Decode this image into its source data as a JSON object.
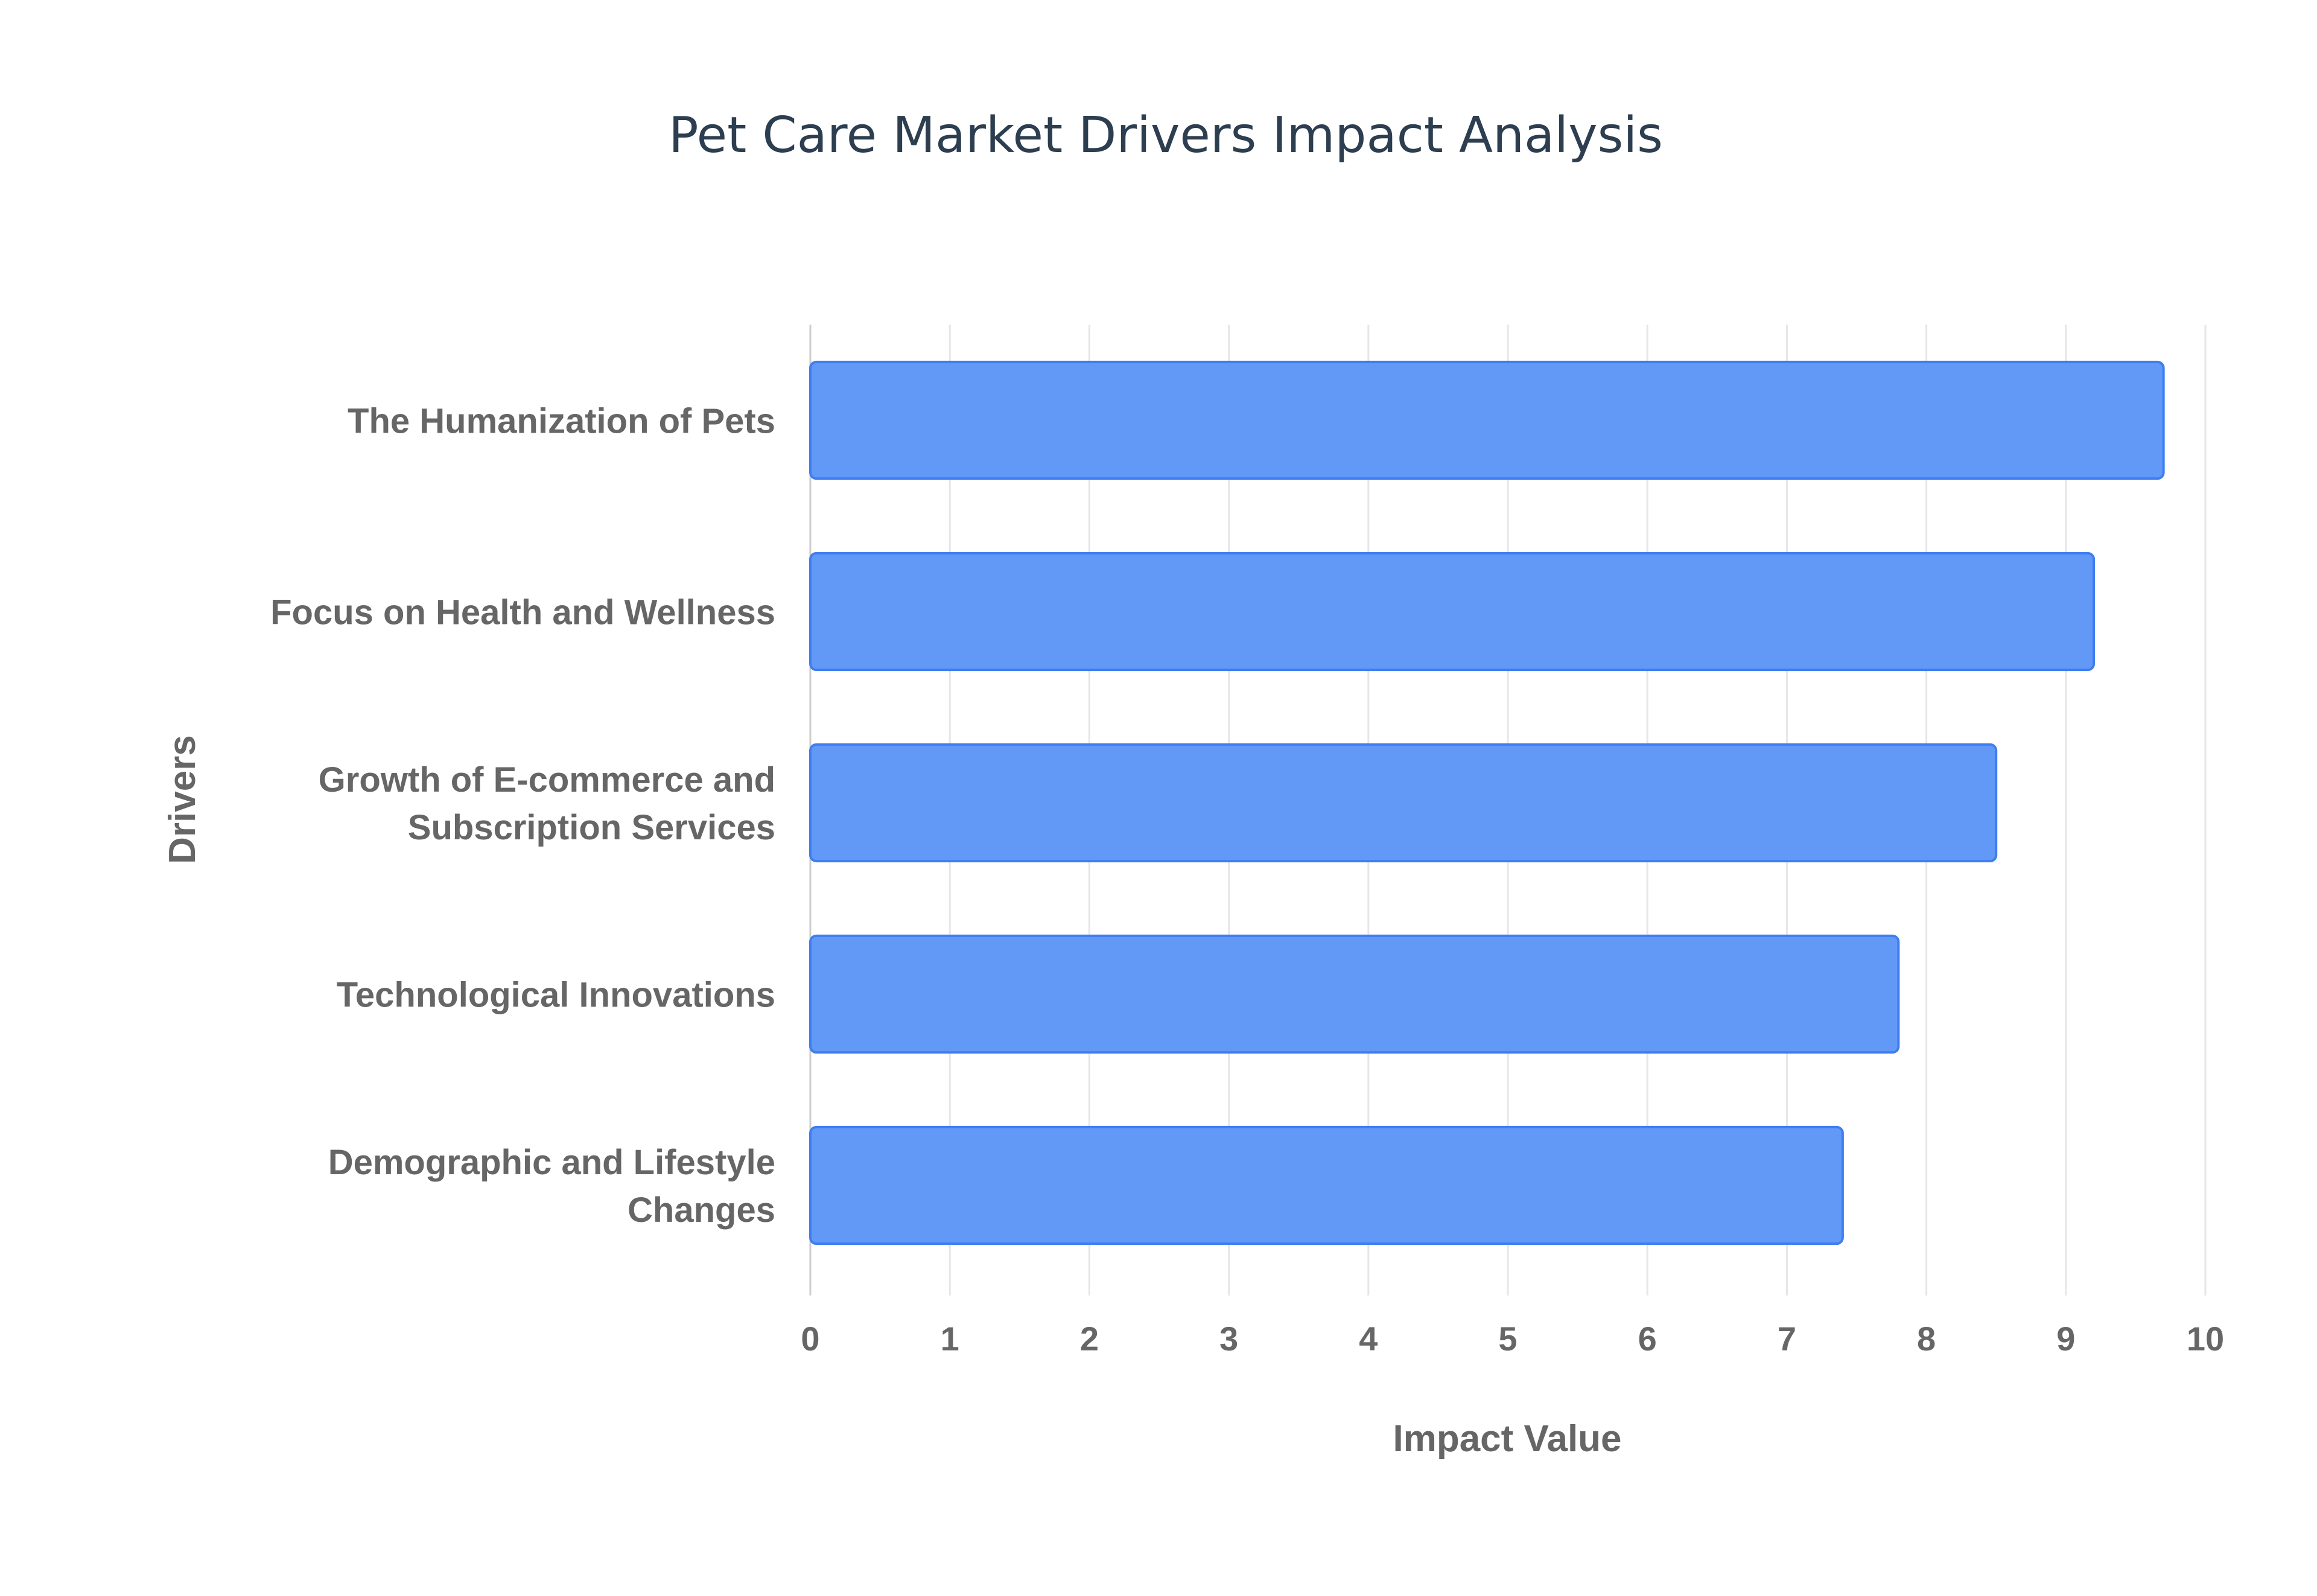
{
  "chart_data": {
    "type": "bar",
    "orientation": "horizontal",
    "title": "Pet Care Market Drivers Impact Analysis",
    "xlabel": "Impact Value",
    "ylabel": "Drivers",
    "categories": [
      [
        "The Humanization of Pets"
      ],
      [
        "Focus on Health and Wellness"
      ],
      [
        "Growth of E-commerce and",
        "Subscription Services"
      ],
      [
        "Technological Innovations"
      ],
      [
        "Demographic and Lifestyle",
        "Changes"
      ]
    ],
    "values": [
      9.7,
      9.2,
      8.5,
      7.8,
      7.4
    ],
    "xlim": [
      0,
      10
    ],
    "xticks": [
      "0",
      "1",
      "2",
      "3",
      "4",
      "5",
      "6",
      "7",
      "8",
      "9",
      "10"
    ],
    "grid": true,
    "legend": "none",
    "colors": {
      "bar_fill": "#6399f6",
      "bar_stroke": "#3f7ef0",
      "title": "#2c3e50",
      "axis_text": "#666666",
      "grid": "#e6e6e6"
    }
  }
}
